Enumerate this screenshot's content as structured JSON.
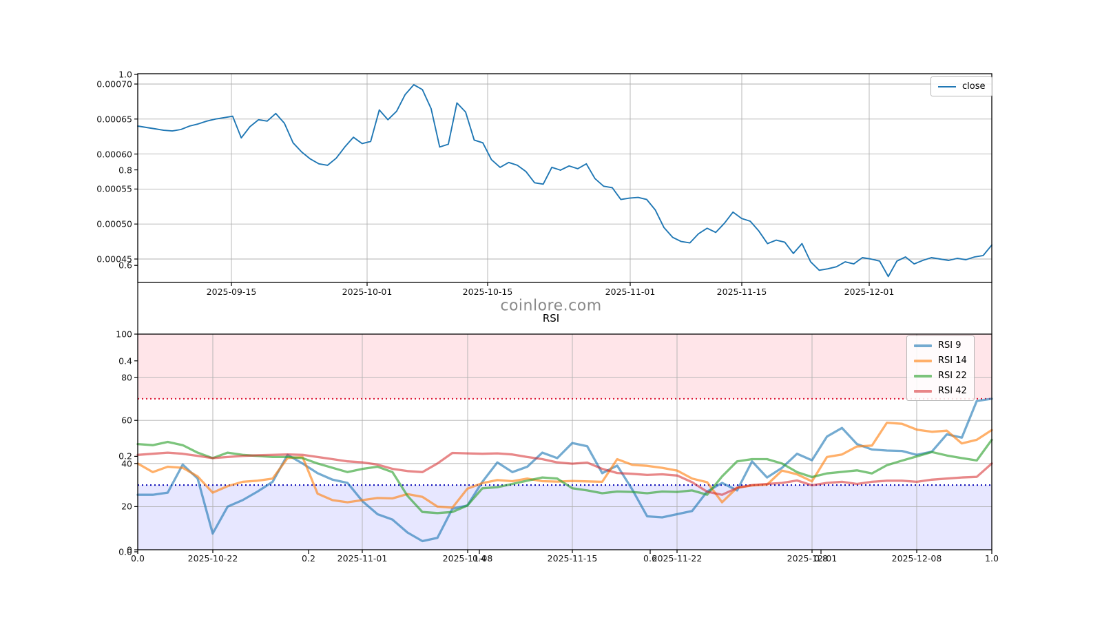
{
  "watermark": "coinlore.com",
  "top_chart": {
    "legend": [
      "close"
    ],
    "y_tick_labels": [
      "0.00070",
      "0.00065",
      "0.00060",
      "0.00055",
      "0.00050",
      "0.00045"
    ],
    "x_tick_labels": [
      "2025-09-15",
      "2025-10-01",
      "2025-10-15",
      "2025-11-01",
      "2025-11-15",
      "2025-12-01"
    ]
  },
  "rsi_chart": {
    "title": "RSI",
    "legend": [
      "RSI 9",
      "RSI 14",
      "RSI 22",
      "RSI 42"
    ],
    "y_tick_labels": [
      "100",
      "80",
      "60",
      "40",
      "20",
      "0"
    ],
    "x_tick_labels": [
      "2025-10-22",
      "2025-11-01",
      "2025-11-08",
      "2025-11-15",
      "2025-11-22",
      "2025-12-01",
      "2025-12-08"
    ]
  },
  "hidden_axis": {
    "y_tick_labels": [
      "1.0",
      "0.8",
      "0.6",
      "0.4",
      "0.2",
      "0.0"
    ],
    "x_tick_labels": [
      "0.0",
      "0.2",
      "0.4",
      "0.6",
      "0.8",
      "1.0"
    ]
  },
  "colors": {
    "close": "#1f77b4",
    "rsi9": "rgba(31,119,180,0.62)",
    "rsi14": "rgba(255,127,14,0.62)",
    "rsi22": "rgba(44,160,44,0.62)",
    "rsi42": "rgba(214,39,40,0.55)",
    "overbought_band": "rgba(255,40,70,0.12)",
    "oversold_band": "rgba(70,70,255,0.13)",
    "overbought_line": "#dc1432",
    "oversold_line": "#0000b4",
    "grid": "#b0b0b0",
    "spine": "#000000",
    "watermark_color": "#8a8a8a"
  },
  "chart_data": [
    {
      "type": "line",
      "title": "",
      "ylabel": "",
      "legend_position": "upper right",
      "grid": true,
      "ylim": [
        0.000417,
        0.000702
      ],
      "y_ticks": [
        0.0007,
        0.00065,
        0.0006,
        0.00055,
        0.0005,
        0.00045
      ],
      "x_tick_labels": [
        "2025-09-15",
        "2025-10-01",
        "2025-10-15",
        "2025-11-01",
        "2025-11-15",
        "2025-12-01"
      ],
      "series": [
        {
          "name": "close",
          "values": [
            0.00064,
            0.000638,
            0.000636,
            0.000634,
            0.000633,
            0.000635,
            0.00064,
            0.000643,
            0.000647,
            0.00065,
            0.000652,
            0.000654,
            0.000623,
            0.000639,
            0.000649,
            0.000647,
            0.000658,
            0.000644,
            0.000616,
            0.000603,
            0.000593,
            0.000586,
            0.000584,
            0.000594,
            0.00061,
            0.000624,
            0.000615,
            0.000618,
            0.000663,
            0.000649,
            0.000661,
            0.000685,
            0.000699,
            0.000692,
            0.000665,
            0.00061,
            0.000614,
            0.000673,
            0.00066,
            0.00062,
            0.000616,
            0.000592,
            0.000581,
            0.000588,
            0.000584,
            0.000575,
            0.000559,
            0.000557,
            0.000581,
            0.000577,
            0.000583,
            0.000579,
            0.000586,
            0.000565,
            0.000554,
            0.000552,
            0.000535,
            0.000537,
            0.000538,
            0.000535,
            0.00052,
            0.000495,
            0.000481,
            0.000475,
            0.000473,
            0.000486,
            0.000494,
            0.000488,
            0.000501,
            0.000517,
            0.000508,
            0.000504,
            0.00049,
            0.000472,
            0.000477,
            0.000474,
            0.000458,
            0.000472,
            0.000446,
            0.000434,
            0.000436,
            0.000439,
            0.000446,
            0.000443,
            0.000452,
            0.00045,
            0.000447,
            0.000425,
            0.000447,
            0.000453,
            0.000443,
            0.000448,
            0.000452,
            0.00045,
            0.000448,
            0.000451,
            0.000449,
            0.000453,
            0.000455,
            0.00047
          ]
        }
      ]
    },
    {
      "type": "line",
      "title": "RSI",
      "grid": true,
      "legend_position": "upper right",
      "ylim": [
        0,
        100
      ],
      "y_ticks": [
        100,
        80,
        60,
        40,
        20,
        0
      ],
      "overbought_level": 70,
      "oversold_level": 30,
      "x_tick_labels": [
        "2025-10-22",
        "2025-11-01",
        "2025-11-08",
        "2025-11-15",
        "2025-11-22",
        "2025-12-01",
        "2025-12-08"
      ],
      "series": [
        {
          "name": "RSI 9",
          "values": [
            25.5,
            25.5,
            26.5,
            39.5,
            33,
            7.5,
            20,
            23,
            27,
            31.5,
            44,
            40,
            35.5,
            32.5,
            31,
            22.5,
            16.5,
            14,
            8,
            4,
            5.5,
            19,
            20.5,
            31.5,
            40.5,
            36,
            38.5,
            45,
            42.5,
            49.5,
            48,
            35.5,
            39,
            28,
            15.5,
            15,
            16.5,
            18,
            27,
            31,
            27.5,
            41,
            33.5,
            38,
            44.5,
            41.5,
            52.5,
            56.5,
            49,
            46.5,
            46,
            45.8,
            44,
            45.5,
            53.5,
            52,
            69,
            70
          ]
        },
        {
          "name": "RSI 14",
          "values": [
            40,
            36,
            38.5,
            38,
            34,
            26.5,
            29.5,
            31.5,
            32,
            33,
            42.5,
            43,
            26,
            23,
            22,
            23,
            24,
            23.8,
            25.8,
            24.5,
            20,
            19.5,
            28.3,
            30.9,
            32.3,
            31.8,
            33,
            31.8,
            31.6,
            31.9,
            31.7,
            31.5,
            42,
            39.4,
            38.9,
            38,
            36.7,
            33,
            31.3,
            22,
            28.8,
            29.8,
            30.2,
            36.7,
            35,
            31.7,
            43,
            44.2,
            47.9,
            48.3,
            58.9,
            58.4,
            55.7,
            54.7,
            55.2,
            49.3,
            51,
            55.5
          ]
        },
        {
          "name": "RSI 22",
          "values": [
            49,
            48.5,
            50,
            48.5,
            45,
            42.5,
            45,
            44,
            43.5,
            43,
            43,
            42.5,
            40,
            38,
            36,
            37.5,
            38.5,
            36,
            25,
            17.5,
            17,
            17.5,
            20.5,
            28.5,
            29,
            30.5,
            32,
            33.5,
            33,
            28.5,
            27.5,
            26.2,
            27,
            26.8,
            26.2,
            27,
            26.8,
            27.5,
            25.5,
            34,
            41,
            42,
            42,
            40,
            36,
            33.7,
            35.4,
            36.1,
            36.8,
            35.4,
            39.2,
            41.3,
            43.3,
            45.3,
            43.7,
            42.5,
            41.4,
            51
          ]
        },
        {
          "name": "RSI 42",
          "values": [
            44,
            44.5,
            45,
            44.5,
            43.5,
            42.5,
            43,
            43.5,
            43.8,
            44,
            44.2,
            44,
            43,
            42,
            41,
            40.5,
            39.5,
            37.5,
            36.5,
            36,
            40,
            44.9,
            44.7,
            44.5,
            44.7,
            44.2,
            43,
            42,
            40.5,
            39.9,
            40.4,
            37.5,
            35.6,
            35.2,
            34.7,
            35,
            34.4,
            31.3,
            26.9,
            25.5,
            28.7,
            30,
            30.5,
            31,
            32.1,
            29.9,
            31,
            31.5,
            30.5,
            31.5,
            32,
            32,
            31.5,
            32.5,
            33,
            33.5,
            33.8,
            40
          ]
        }
      ]
    }
  ]
}
